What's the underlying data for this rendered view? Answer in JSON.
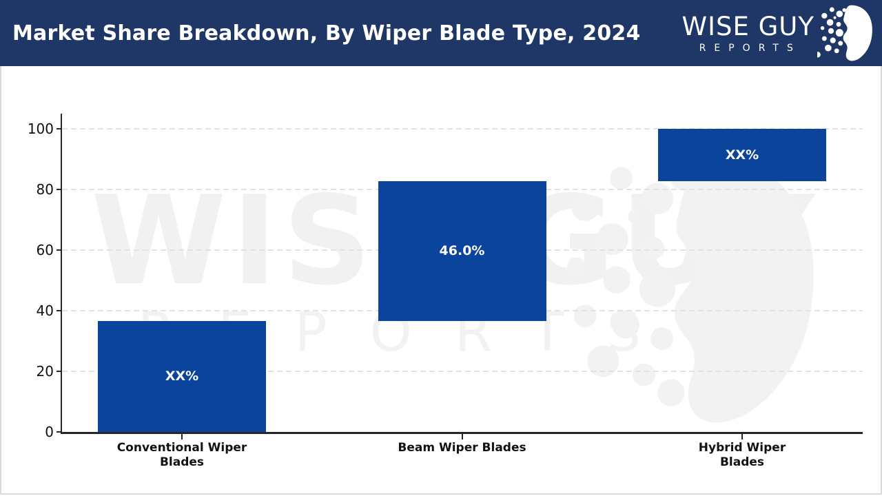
{
  "header": {
    "title": "Market Share Breakdown, By Wiper Blade Type, 2024",
    "logo_line1": "WISE GUY",
    "logo_line2": "REPORTS"
  },
  "watermark": {
    "line1": "WISE GUY",
    "line2": "REPORTS"
  },
  "colors": {
    "header_bg": "#1f3766",
    "bar": "#0a449c",
    "bar_label": "#ffffff",
    "grid": "#e2e2e2",
    "axis": "#262626",
    "watermark": "#f1f1f1",
    "border": "#dadada"
  },
  "chart_data": {
    "type": "bar",
    "subtype": "waterfall",
    "title": "Market Share Breakdown, By Wiper Blade Type, 2024",
    "xlabel": "",
    "ylabel": "",
    "ylim": [
      0,
      105
    ],
    "yticks": [
      0,
      20,
      40,
      60,
      80,
      100
    ],
    "grid": true,
    "grid_style": "dashed",
    "legend": false,
    "categories": [
      "Conventional Wiper\nBlades",
      "Beam Wiper Blades",
      "Hybrid Wiper\nBlades"
    ],
    "bars": [
      {
        "category": "Conventional Wiper\nBlades",
        "start": 0,
        "end": 36.7,
        "label": "XX%"
      },
      {
        "category": "Beam Wiper Blades",
        "start": 36.7,
        "end": 82.7,
        "label": "46.0%"
      },
      {
        "category": "Hybrid Wiper\nBlades",
        "start": 82.7,
        "end": 100,
        "label": "XX%"
      }
    ]
  }
}
